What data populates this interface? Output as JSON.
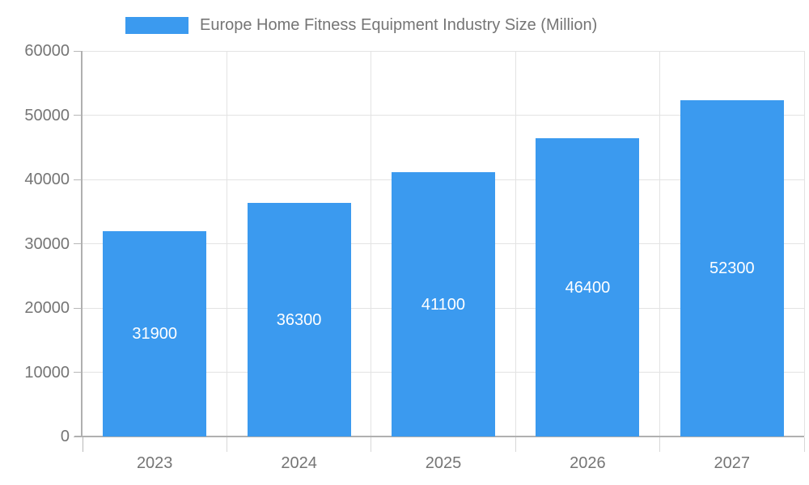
{
  "page": {
    "background": "#ffffff"
  },
  "legend": {
    "position": "top",
    "swatch_color": "#3b9aef",
    "text_color": "#757575"
  },
  "chart_data": {
    "type": "bar",
    "title": "Europe Home Fitness Equipment Industry Size (Million)",
    "categories": [
      "2023",
      "2024",
      "2025",
      "2026",
      "2027"
    ],
    "values": [
      31900,
      36300,
      41100,
      46400,
      52300
    ],
    "bar_labels": [
      "31900",
      "36300",
      "41100",
      "46400",
      "52300"
    ],
    "xlabel": "",
    "ylabel": "",
    "ylim": [
      0,
      60000
    ],
    "ytick_step": 10000,
    "yticks": [
      "0",
      "10000",
      "20000",
      "30000",
      "40000",
      "50000",
      "60000"
    ],
    "grid": true,
    "legend_position": "top",
    "bar_label_position": "inside-center"
  },
  "colors": {
    "bar": "#3b9aef",
    "grid_line": "#e3e3e3",
    "axis_line": "#b0b0b0",
    "y_tick": "#b8b8b8",
    "x_tick": "#d8d8d8",
    "axis_text": "#757575",
    "value_label_text": "#ffffff"
  }
}
